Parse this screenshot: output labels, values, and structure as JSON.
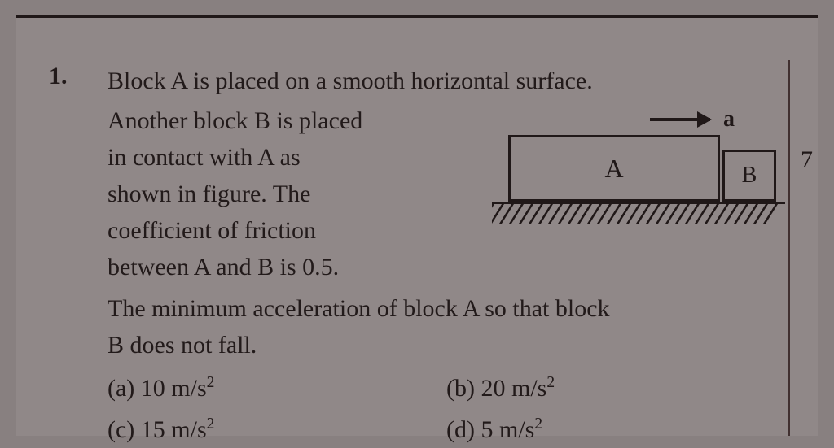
{
  "question_number": "1.",
  "line_top": "Block A is placed on a smooth horizontal surface.",
  "wrapped_text_lines": [
    "Another block B is placed",
    "in contact with A as",
    "shown in figure. The",
    "coefficient of friction",
    "between A and B is 0.5."
  ],
  "line_after": "The minimum acceleration of block A so that block",
  "line_after2": "B does not fall.",
  "diagram": {
    "type": "physics-diagram",
    "block_a_label": "A",
    "block_b_label": "B",
    "arrow_label": "a",
    "hatch_count": 30,
    "colors": {
      "stroke": "#201818",
      "background": "transparent"
    }
  },
  "options": {
    "a": {
      "label": "(a)",
      "value": "10 m/s",
      "exp": "2"
    },
    "b": {
      "label": "(b)",
      "value": "20 m/s",
      "exp": "2"
    },
    "c": {
      "label": "(c)",
      "value": "15 m/s",
      "exp": "2"
    },
    "d": {
      "label": "(d)",
      "value": "5 m/s",
      "exp": "2"
    }
  },
  "side_mark": "7",
  "style": {
    "page_bg": "#908888",
    "body_bg": "#888080",
    "text_color": "#221a1a",
    "rule_color": "#201818",
    "font_size_body": 30,
    "font_family": "Georgia, 'Times New Roman', serif"
  }
}
